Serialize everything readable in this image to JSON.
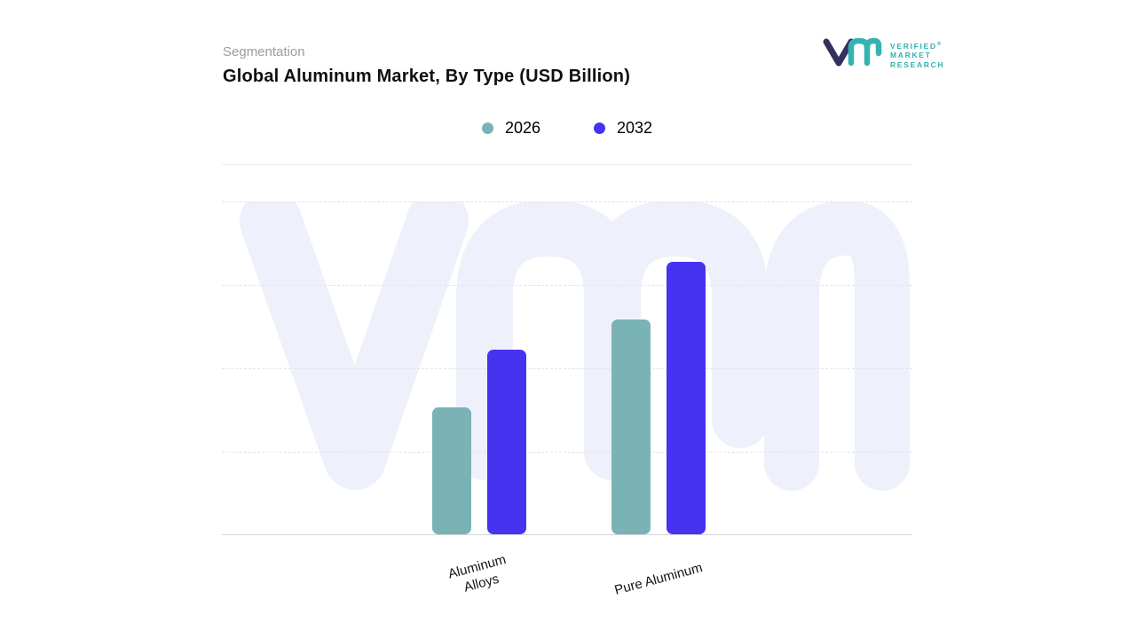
{
  "header": {
    "eyebrow": "Segmentation",
    "title": "Global Aluminum Market, By Type",
    "title_suffix": "(USD Billion)"
  },
  "logo": {
    "brand_lines": [
      "VERIFIED",
      "MARKET",
      "RESEARCH"
    ],
    "registered_mark": "®",
    "mark_colors": {
      "navy": "#34315e",
      "teal": "#36b3b0"
    }
  },
  "legend": [
    {
      "label": "2026",
      "color": "#7ab3b5"
    },
    {
      "label": "2032",
      "color": "#4533ef"
    }
  ],
  "watermark": "VMR",
  "colors": {
    "teal_series": "#7ab3b5",
    "purple_series": "#4533ef",
    "watermark": "#eef1fb",
    "gridline": "#e4e4e6"
  },
  "chart_data": {
    "type": "bar",
    "title": "Global Aluminum Market, By Type (USD Billion)",
    "categories": [
      "Aluminum Alloys",
      "Pure Aluminum"
    ],
    "x_tick_labels": [
      "Aluminum\nAlloys",
      "Pure Aluminum"
    ],
    "series": [
      {
        "name": "2026",
        "color": "#7ab3b5",
        "values": [
          145,
          245
        ]
      },
      {
        "name": "2032",
        "color": "#4533ef",
        "values": [
          210,
          310
        ]
      }
    ],
    "xlabel": "",
    "ylabel": "",
    "ylim": [
      0,
      380
    ],
    "y_axis_labels_visible": false,
    "value_labels": false,
    "grid": "horizontal-dashed",
    "legend_position": "top-center"
  }
}
